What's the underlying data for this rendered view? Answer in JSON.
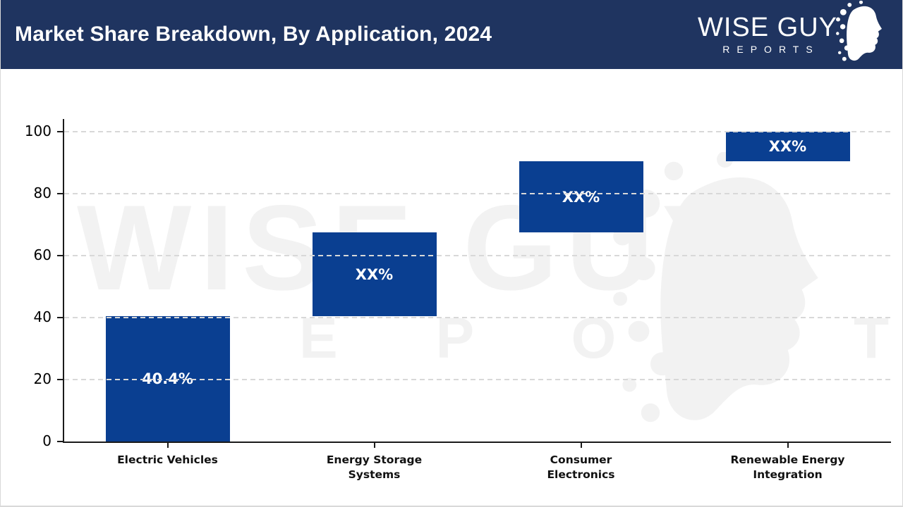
{
  "header": {
    "title": "Market Share Breakdown, By Application, 2024",
    "logo": {
      "line1": "WISE GUY",
      "line2": "REPORTS"
    }
  },
  "watermark": {
    "line1": "WISE GUY",
    "line2": "REPORTS"
  },
  "colors": {
    "header_bg": "#1f3460",
    "bar": "#0a3f91",
    "grid": "#d8d8d8",
    "axis": "#1a1a1a",
    "value_label": "#ffffff",
    "watermark": "#f2f2f2"
  },
  "chart_data": {
    "type": "bar",
    "variant": "floating-segment-breakdown",
    "title": "Market Share Breakdown, By Application, 2024",
    "categories": [
      "Electric Vehicles",
      "Energy Storage\nSystems",
      "Consumer\nElectronics",
      "Renewable Energy\nIntegration"
    ],
    "bars": [
      {
        "category": "Electric Vehicles",
        "start": 0,
        "end": 40.4,
        "label": "40.4%"
      },
      {
        "category": "Energy Storage Systems",
        "start": 40.4,
        "end": 67.4,
        "label": "XX%"
      },
      {
        "category": "Consumer Electronics",
        "start": 67.4,
        "end": 90.4,
        "label": "XX%"
      },
      {
        "category": "Renewable Energy Integration",
        "start": 90.4,
        "end": 100,
        "label": "XX%"
      }
    ],
    "yticks": [
      0,
      20,
      40,
      60,
      80,
      100
    ],
    "ylim": [
      0,
      100
    ],
    "xlabel": "",
    "ylabel": "",
    "grid": "dashed-horizontal",
    "legend": "none"
  }
}
